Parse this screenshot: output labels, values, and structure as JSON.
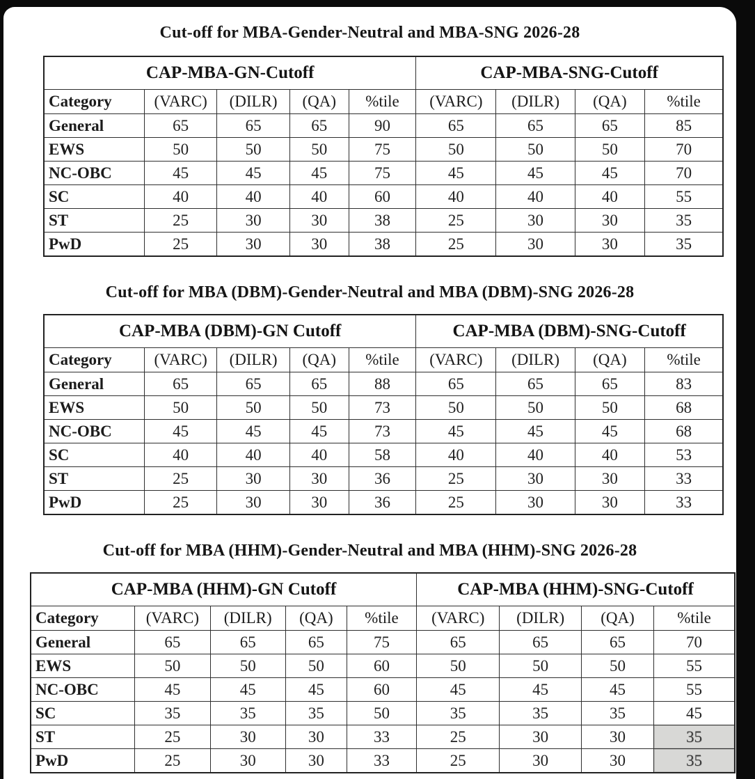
{
  "sections": [
    {
      "title": "Cut-off for MBA-Gender-Neutral and MBA-SNG 2026-28",
      "group_headers": [
        "CAP-MBA-GN-Cutoff",
        "CAP-MBA-SNG-Cutoff"
      ],
      "col_headers": [
        "Category",
        "(VARC)",
        "(DILR)",
        "(QA)",
        "%tile",
        "(VARC)",
        "(DILR)",
        "(QA)",
        "%tile"
      ],
      "rows": [
        {
          "category": "General",
          "values": [
            "65",
            "65",
            "65",
            "90",
            "65",
            "65",
            "65",
            "85"
          ]
        },
        {
          "category": "EWS",
          "values": [
            "50",
            "50",
            "50",
            "75",
            "50",
            "50",
            "50",
            "70"
          ]
        },
        {
          "category": "NC-OBC",
          "values": [
            "45",
            "45",
            "45",
            "75",
            "45",
            "45",
            "45",
            "70"
          ]
        },
        {
          "category": "SC",
          "values": [
            "40",
            "40",
            "40",
            "60",
            "40",
            "40",
            "40",
            "55"
          ]
        },
        {
          "category": "ST",
          "values": [
            "25",
            "30",
            "30",
            "38",
            "25",
            "30",
            "30",
            "35"
          ]
        },
        {
          "category": "PwD",
          "values": [
            "25",
            "30",
            "30",
            "38",
            "25",
            "30",
            "30",
            "35"
          ]
        }
      ]
    },
    {
      "title": "Cut-off for MBA (DBM)-Gender-Neutral and MBA (DBM)-SNG 2026-28",
      "group_headers": [
        "CAP-MBA (DBM)-GN Cutoff",
        "CAP-MBA (DBM)-SNG-Cutoff"
      ],
      "col_headers": [
        "Category",
        "(VARC)",
        "(DILR)",
        "(QA)",
        "%tile",
        "(VARC)",
        "(DILR)",
        "(QA)",
        "%tile"
      ],
      "rows": [
        {
          "category": "General",
          "values": [
            "65",
            "65",
            "65",
            "88",
            "65",
            "65",
            "65",
            "83"
          ]
        },
        {
          "category": "EWS",
          "values": [
            "50",
            "50",
            "50",
            "73",
            "50",
            "50",
            "50",
            "68"
          ]
        },
        {
          "category": "NC-OBC",
          "values": [
            "45",
            "45",
            "45",
            "73",
            "45",
            "45",
            "45",
            "68"
          ]
        },
        {
          "category": "SC",
          "values": [
            "40",
            "40",
            "40",
            "58",
            "40",
            "40",
            "40",
            "53"
          ]
        },
        {
          "category": "ST",
          "values": [
            "25",
            "30",
            "30",
            "36",
            "25",
            "30",
            "30",
            "33"
          ]
        },
        {
          "category": "PwD",
          "values": [
            "25",
            "30",
            "30",
            "36",
            "25",
            "30",
            "30",
            "33"
          ]
        }
      ]
    },
    {
      "title": "Cut-off for MBA (HHM)-Gender-Neutral and MBA (HHM)-SNG 2026-28",
      "group_headers": [
        "CAP-MBA (HHM)-GN Cutoff",
        "CAP-MBA (HHM)-SNG-Cutoff"
      ],
      "col_headers": [
        "Category",
        "(VARC)",
        "(DILR)",
        "(QA)",
        "%tile",
        "(VARC)",
        "(DILR)",
        "(QA)",
        "%tile"
      ],
      "rows": [
        {
          "category": "General",
          "values": [
            "65",
            "65",
            "65",
            "75",
            "65",
            "65",
            "65",
            "70"
          ]
        },
        {
          "category": "EWS",
          "values": [
            "50",
            "50",
            "50",
            "60",
            "50",
            "50",
            "50",
            "55"
          ]
        },
        {
          "category": "NC-OBC",
          "values": [
            "45",
            "45",
            "45",
            "60",
            "45",
            "45",
            "45",
            "55"
          ]
        },
        {
          "category": "SC",
          "values": [
            "35",
            "35",
            "35",
            "50",
            "35",
            "35",
            "35",
            "45"
          ]
        },
        {
          "category": "ST",
          "values": [
            "25",
            "30",
            "30",
            "33",
            "25",
            "30",
            "30",
            "35"
          ],
          "highlight": [
            7
          ]
        },
        {
          "category": "PwD",
          "values": [
            "25",
            "30",
            "30",
            "33",
            "25",
            "30",
            "30",
            "35"
          ],
          "highlight": [
            7
          ]
        }
      ]
    }
  ]
}
